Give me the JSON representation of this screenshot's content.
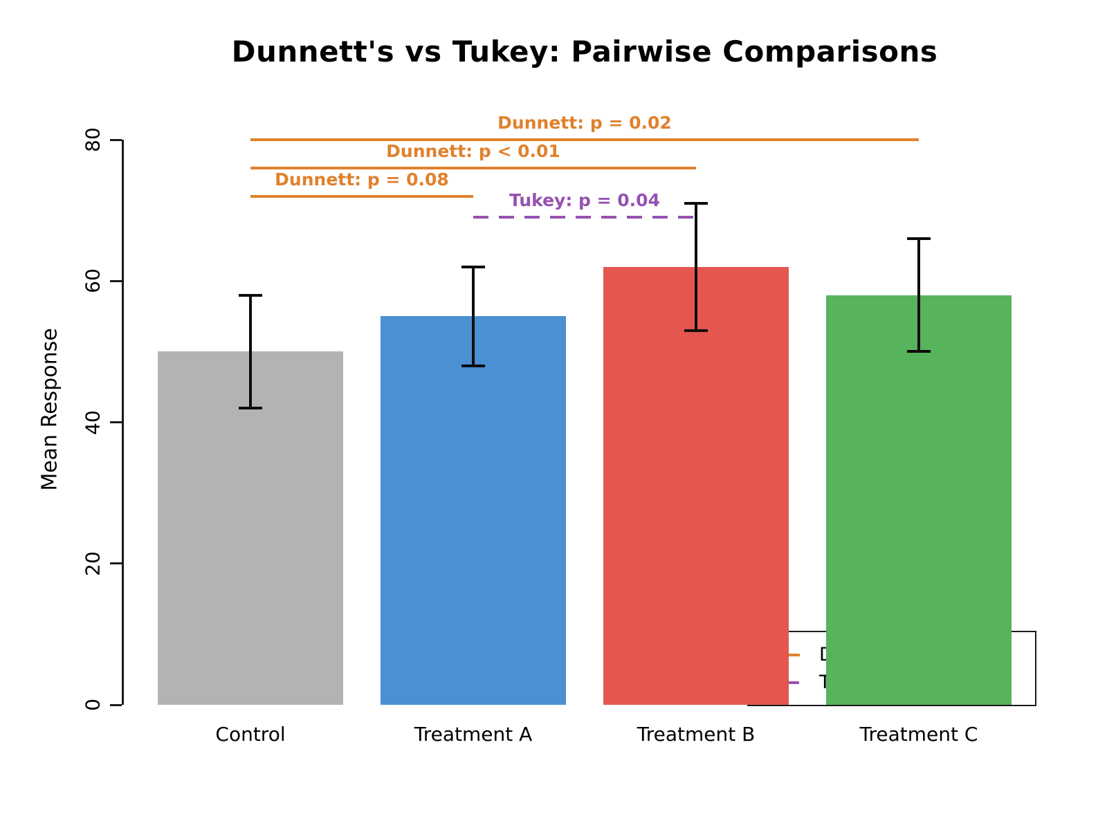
{
  "chart_data": {
    "type": "bar",
    "title": "Dunnett's vs Tukey: Pairwise Comparisons",
    "xlabel": "",
    "ylabel": "Mean Response",
    "ylim": [
      0,
      80
    ],
    "yticks": [
      0,
      20,
      40,
      60,
      80
    ],
    "grid": false,
    "categories": [
      "Control",
      "Treatment A",
      "Treatment B",
      "Treatment C"
    ],
    "values": [
      50,
      55,
      62,
      58
    ],
    "error_bars": [
      {
        "low": 42,
        "high": 58
      },
      {
        "low": 48,
        "high": 62
      },
      {
        "low": 53,
        "high": 71
      },
      {
        "low": 50,
        "high": 66
      }
    ],
    "bar_colors": [
      "#b3b3b3",
      "#4a90d2",
      "#e4564e",
      "#57b35c"
    ],
    "annotations": [
      {
        "label": "Dunnett: p = 0.02",
        "from": "Control",
        "to": "Treatment C",
        "y": 80,
        "style": "solid",
        "color": "#e0812d"
      },
      {
        "label": "Dunnett: p < 0.01",
        "from": "Control",
        "to": "Treatment B",
        "y": 76,
        "style": "solid",
        "color": "#e0812d"
      },
      {
        "label": "Dunnett: p = 0.08",
        "from": "Control",
        "to": "Treatment A",
        "y": 72,
        "style": "solid",
        "color": "#e0812d"
      },
      {
        "label": "Tukey: p = 0.04",
        "from": "Treatment A",
        "to": "Treatment B",
        "y": 69,
        "style": "dashed",
        "color": "#9452b0"
      }
    ],
    "legend": {
      "position": "lower right",
      "items": [
        {
          "label": "Dunnett (vs Control)",
          "color": "#e0812d",
          "style": "solid"
        },
        {
          "label": "Tukey (all pairs)",
          "color": "#9452b0",
          "style": "dashed"
        }
      ]
    }
  }
}
